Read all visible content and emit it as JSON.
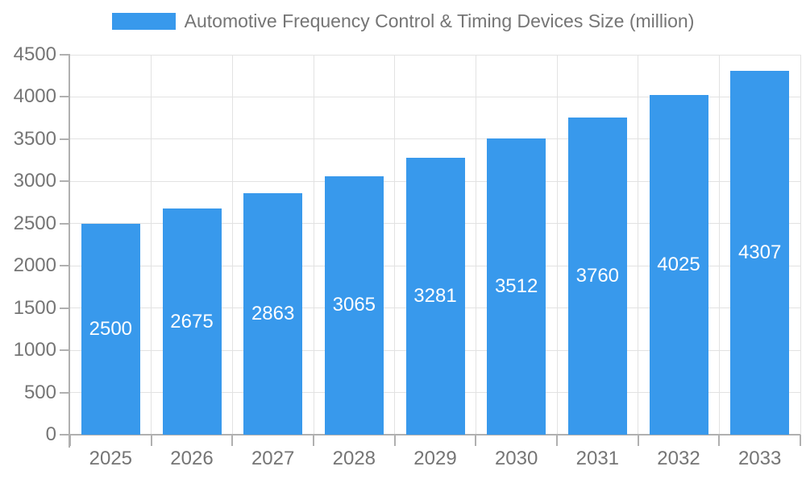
{
  "legend": {
    "label": "Automotive Frequency Control & Timing Devices Size (million)",
    "position": "top-center"
  },
  "colors": {
    "bar": "#3899EC",
    "grid": "#E2E2E2",
    "axis": "#B0B0B0",
    "text": "#757575",
    "bar_label": "#FFFFFF",
    "background": "#FFFFFF"
  },
  "chart_data": {
    "type": "bar",
    "title": "Automotive Frequency Control & Timing Devices Size (million)",
    "categories": [
      "2025",
      "2026",
      "2027",
      "2028",
      "2029",
      "2030",
      "2031",
      "2032",
      "2033"
    ],
    "values": [
      2500,
      2675,
      2863,
      3065,
      3281,
      3512,
      3760,
      4025,
      4307
    ],
    "xlabel": "",
    "ylabel": "",
    "ylim": [
      0,
      4500
    ],
    "ytick_step": 500,
    "ytick_labels": [
      "0",
      "500",
      "1000",
      "1500",
      "2000",
      "2500",
      "3000",
      "3500",
      "4000",
      "4500"
    ],
    "grid": "horizontal and vertical gridlines",
    "legend_position": "top-center",
    "value_labels": "white, centered vertically inside each bar"
  }
}
